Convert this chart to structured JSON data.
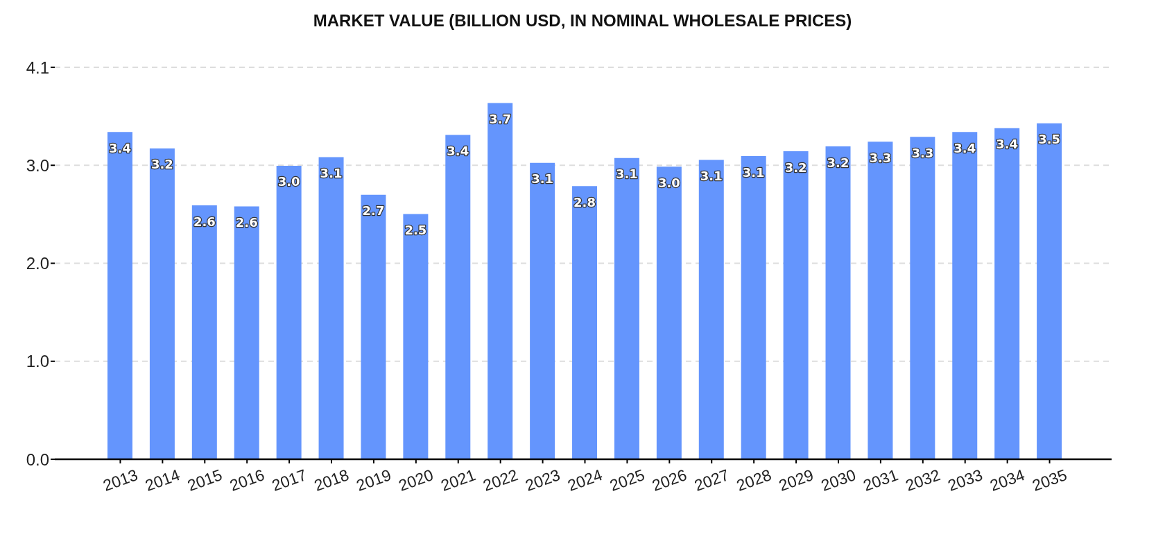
{
  "chart_data": {
    "type": "bar",
    "title": "MARKET VALUE (BILLION USD, IN NOMINAL WHOLESALE PRICES)",
    "categories": [
      "2013",
      "2014",
      "2015",
      "2016",
      "2017",
      "2018",
      "2019",
      "2020",
      "2021",
      "2022",
      "2023",
      "2024",
      "2025",
      "2026",
      "2027",
      "2028",
      "2029",
      "2030",
      "2031",
      "2032",
      "2033",
      "2034",
      "2035"
    ],
    "values": [
      3.39,
      3.22,
      2.63,
      2.62,
      3.04,
      3.13,
      2.74,
      2.54,
      3.36,
      3.69,
      3.07,
      2.83,
      3.12,
      3.03,
      3.1,
      3.14,
      3.19,
      3.24,
      3.29,
      3.34,
      3.39,
      3.43,
      3.48
    ],
    "value_labels": [
      "3.4",
      "3.2",
      "2.6",
      "2.6",
      "3.0",
      "3.1",
      "2.7",
      "2.5",
      "3.4",
      "3.7",
      "3.1",
      "2.8",
      "3.1",
      "3.0",
      "3.1",
      "3.1",
      "3.2",
      "3.2",
      "3.3",
      "3.3",
      "3.4",
      "3.4",
      "3.5"
    ],
    "color": "#6495fd",
    "ylim": [
      0,
      4.06
    ],
    "yticks": [
      {
        "value": 0,
        "label": "0.0"
      },
      {
        "value": 1.015,
        "label": "1.0"
      },
      {
        "value": 2.03,
        "label": "2.0"
      },
      {
        "value": 3.045,
        "label": "3.0"
      },
      {
        "value": 4.06,
        "label": "4.1"
      }
    ],
    "grid": "y"
  }
}
